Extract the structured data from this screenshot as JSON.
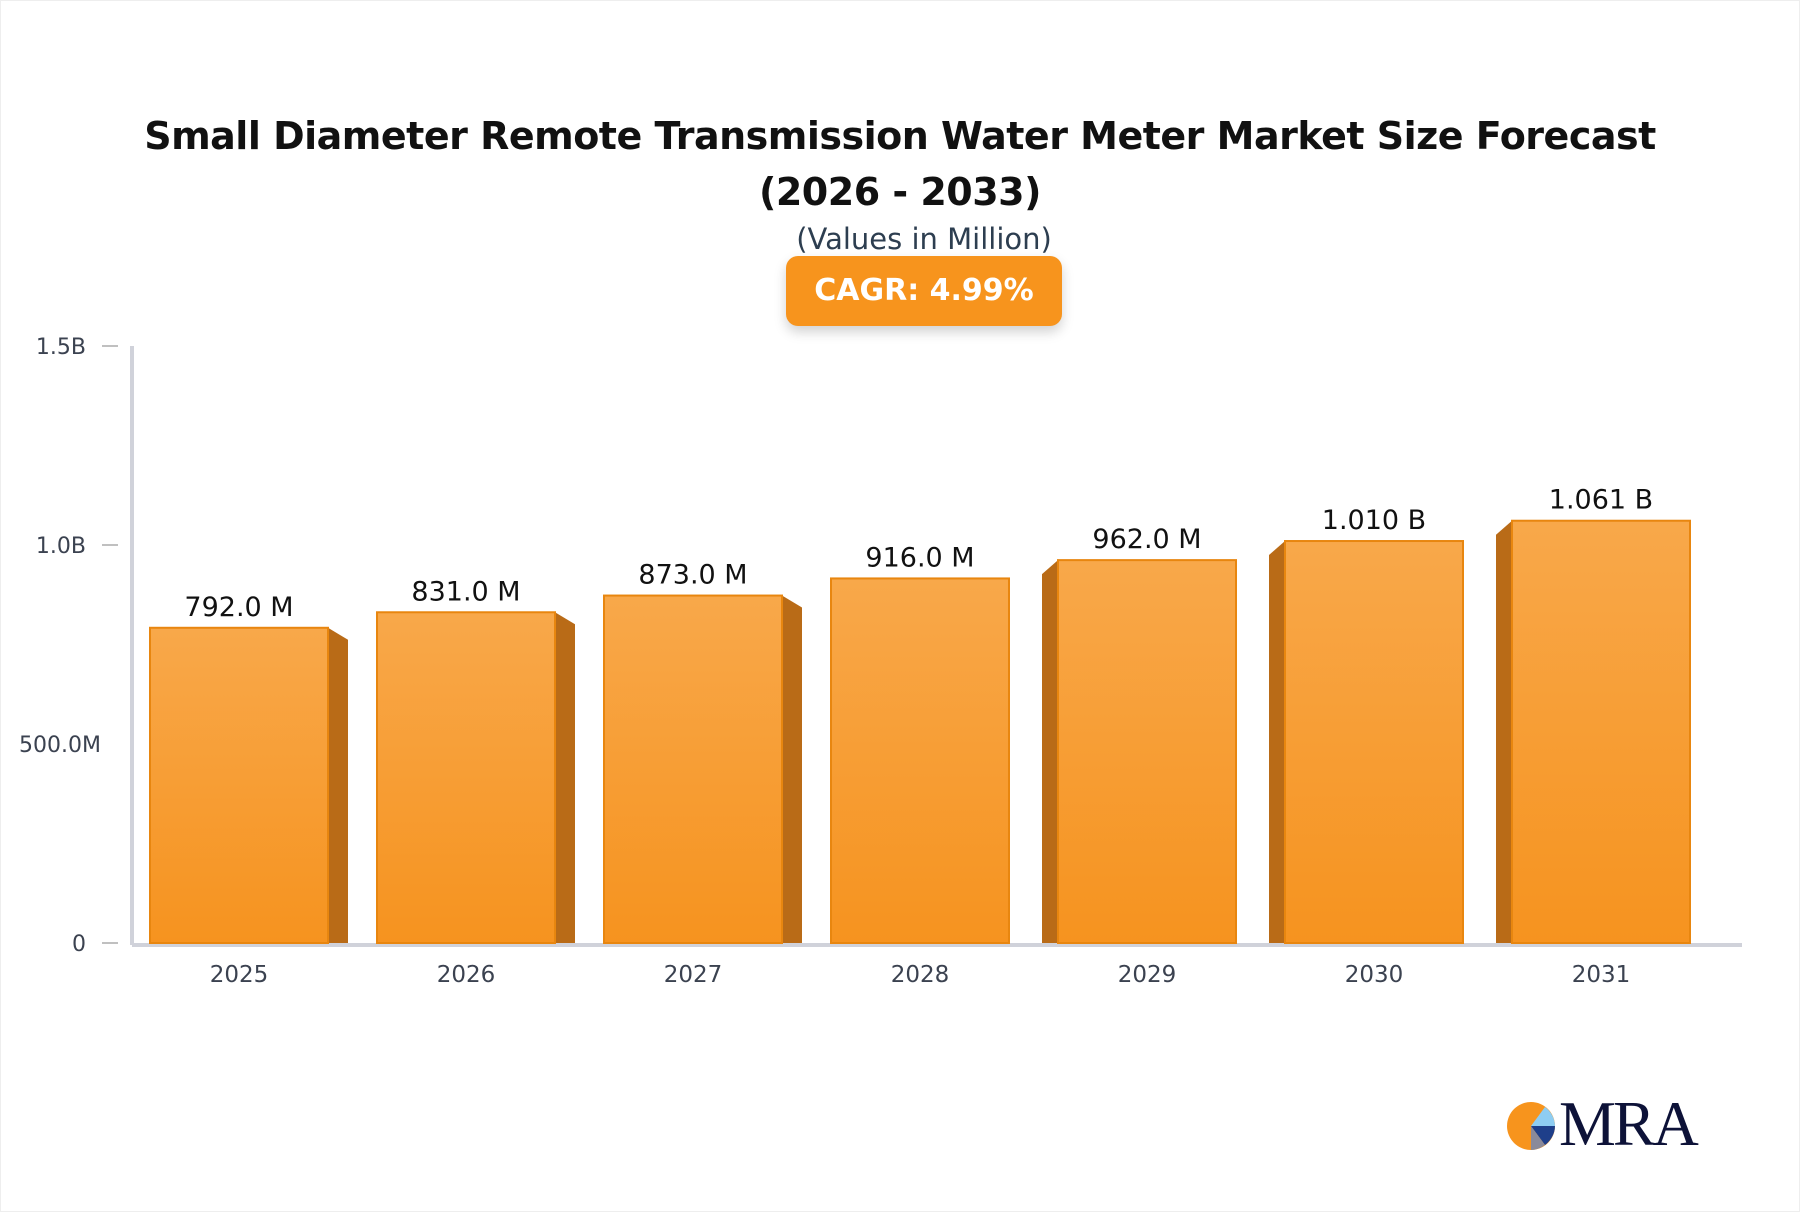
{
  "chart_data": {
    "type": "bar",
    "title": "Small Diameter Remote Transmission Water Meter Market Size Forecast (2026 - 2033)",
    "subtitle": "(Values in Million)",
    "badge": "CAGR: 4.99%",
    "categories": [
      "2025",
      "2026",
      "2027",
      "2028",
      "2029",
      "2030",
      "2031"
    ],
    "values": [
      792.0,
      831.0,
      873.0,
      916.0,
      962.0,
      1010,
      1061
    ],
    "data_labels": [
      "792.0 M",
      "831.0 M",
      "873.0 M",
      "916.0 M",
      "962.0 M",
      "1.010 B",
      "1.061 B"
    ],
    "unit": "Million",
    "ylim": [
      0,
      1500
    ],
    "yticks": [
      0,
      500,
      1000,
      1500
    ],
    "ytick_labels": [
      "0",
      "500.0M",
      "1.0B",
      "1.5B"
    ],
    "xlabel": "",
    "ylabel": "",
    "grid": false,
    "colors": {
      "bar": "#f7941d",
      "bar_top": "#f8a84a",
      "bar_side": "#b96b17",
      "axis": "#d0d2da"
    }
  },
  "logo": {
    "text": "MRA"
  }
}
